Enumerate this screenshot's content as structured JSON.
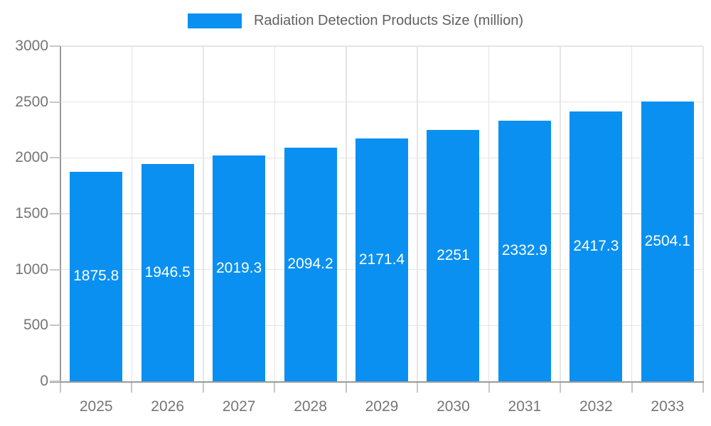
{
  "chart_data": {
    "type": "bar",
    "title": "Radiation Detection Products Size (million)",
    "categories": [
      "2025",
      "2026",
      "2027",
      "2028",
      "2029",
      "2030",
      "2031",
      "2032",
      "2033"
    ],
    "values": [
      1875.8,
      1946.5,
      2019.3,
      2094.2,
      2171.4,
      2251,
      2332.9,
      2417.3,
      2504.1
    ],
    "value_labels": [
      "1875.8",
      "1946.5",
      "2019.3",
      "2094.2",
      "2171.4",
      "2251",
      "2332.9",
      "2417.3",
      "2504.1"
    ],
    "series_name": "Radiation Detection Products Size (million)",
    "xlabel": "",
    "ylabel": "",
    "ylim": [
      0,
      3000
    ],
    "yticks": [
      0,
      500,
      1000,
      1500,
      2000,
      2500,
      3000
    ],
    "grid": true,
    "legend_position": "top-center"
  },
  "colors": {
    "bar": "#0a90f1",
    "bar_label": "#ffffff",
    "grid": "#e5e5e5",
    "axis": "#9a9a9a",
    "tick": "#c6c6c6",
    "tick_label": "#757575",
    "legend_text": "#616161",
    "background": "#ffffff"
  }
}
